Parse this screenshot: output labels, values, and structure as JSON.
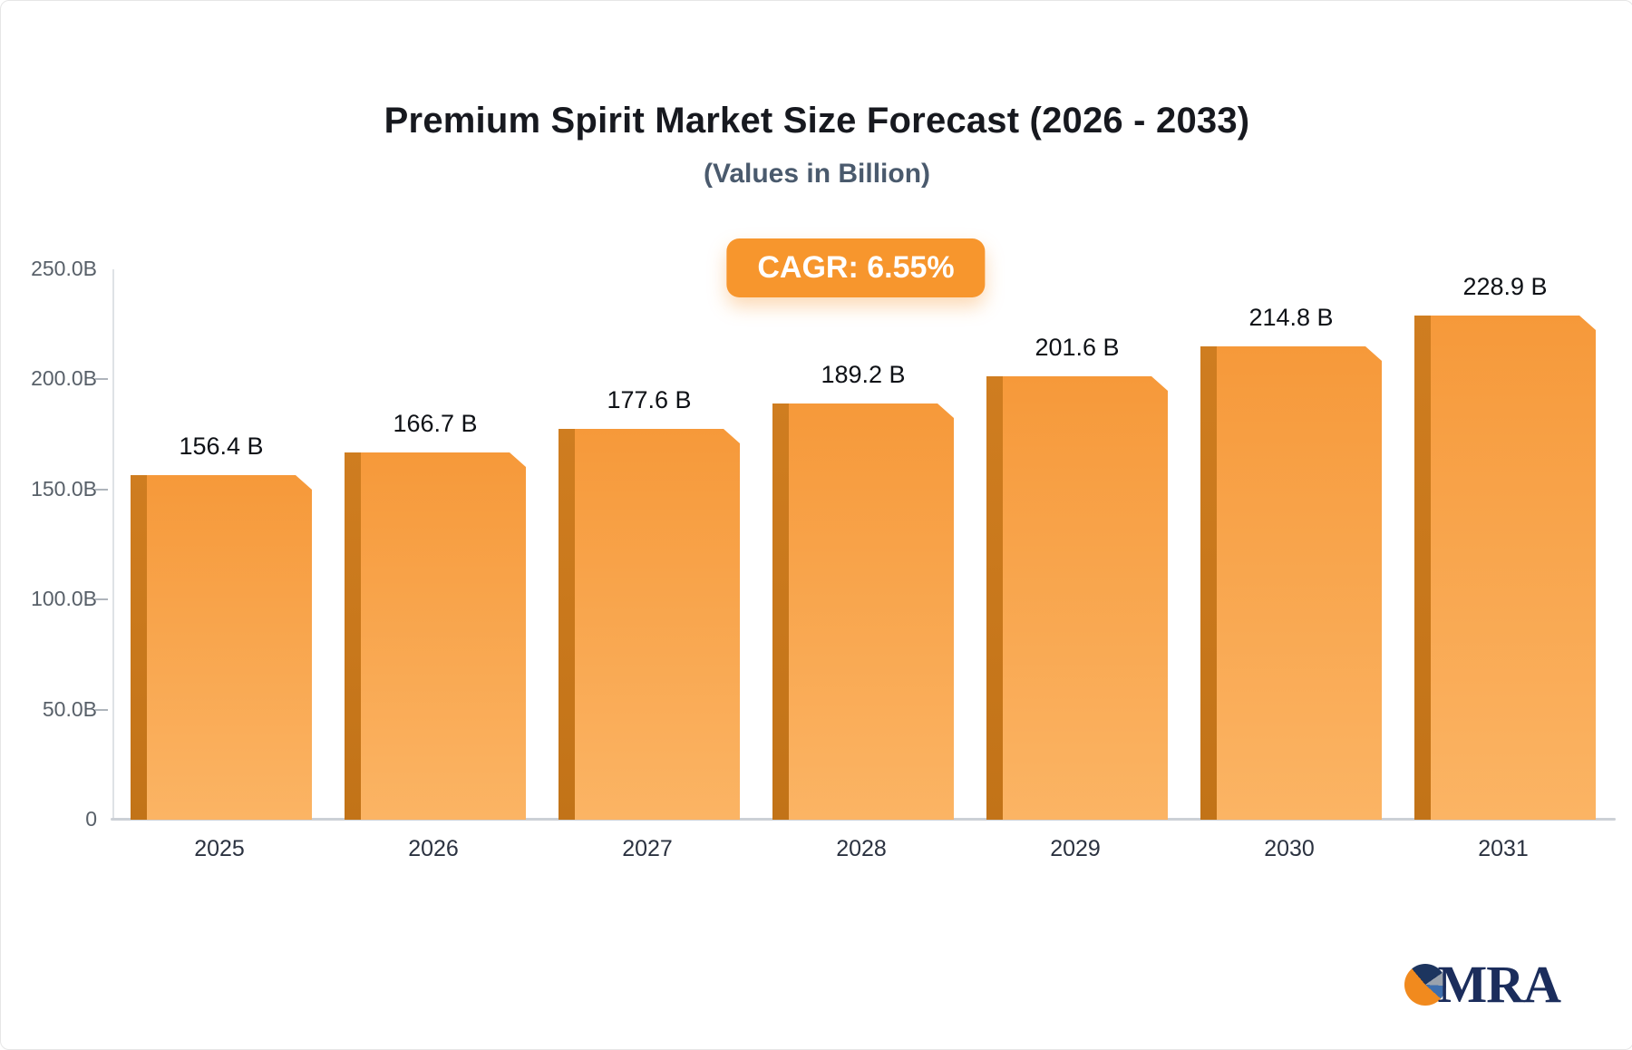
{
  "title": "Premium Spirit Market Size Forecast (2026 - 2033)",
  "subtitle": "(Values in Billion)",
  "badge": {
    "label": "CAGR: 6.55%",
    "color": "#f7962d"
  },
  "logo": {
    "text": "MRA"
  },
  "chart_data": {
    "type": "bar",
    "title": "Premium Spirit Market Size Forecast (2026 - 2033)",
    "subtitle": "(Values in Billion)",
    "cagr": "6.55%",
    "categories": [
      "2025",
      "2026",
      "2027",
      "2028",
      "2029",
      "2030",
      "2031"
    ],
    "values": [
      156.4,
      166.7,
      177.6,
      189.2,
      201.6,
      214.8,
      228.9
    ],
    "value_labels": [
      "156.4 B",
      "166.7 B",
      "177.6 B",
      "189.2 B",
      "201.6 B",
      "214.8 B",
      "228.9 B"
    ],
    "xlabel": "",
    "ylabel": "",
    "ylim": [
      0,
      250
    ],
    "yticks": [
      0,
      50,
      100,
      150,
      200,
      250
    ],
    "ytick_labels": [
      "0",
      "50.0B",
      "100.0B",
      "150.0B",
      "200.0B",
      "250.0B"
    ],
    "grid": false,
    "legend": "none",
    "bar_color_top": "#f6993a",
    "bar_color_bottom": "#fbb464",
    "bar_side_color_top": "#cf7d20",
    "bar_side_color_bottom": "#c27318",
    "axis_line_color": "#ccd0d6"
  }
}
